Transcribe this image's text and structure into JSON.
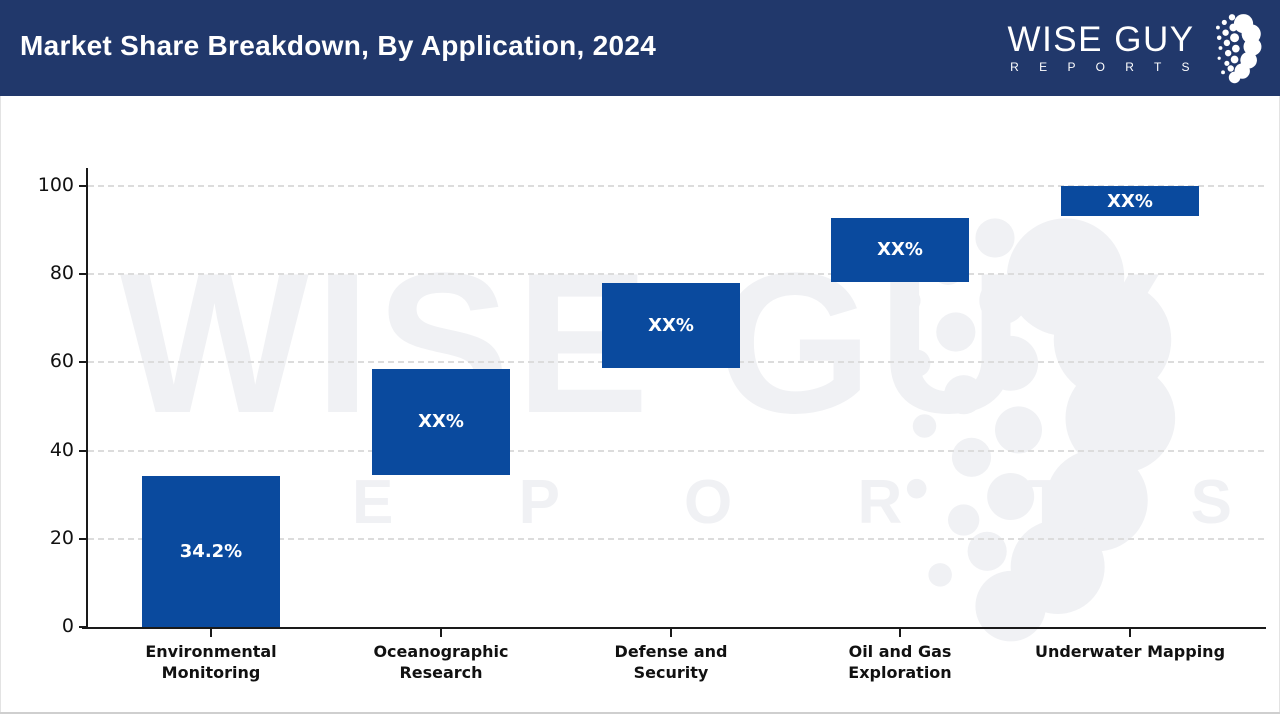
{
  "header": {
    "title": "Market Share Breakdown, By Application, 2024",
    "logo": {
      "line1": "WISE GUY",
      "line2": "R E P O R T S"
    }
  },
  "watermark": {
    "line1": "WISE GUY",
    "line2": "R E P O R T S"
  },
  "colors": {
    "header_bg": "#21386b",
    "bar": "#0a4a9e",
    "bar_label": "#ffffff",
    "grid": "#dcdcdc",
    "axis": "#1a1a1a",
    "watermark": "#f0f1f4"
  },
  "chart_data": {
    "type": "bar",
    "variant": "floating_range_waterfall",
    "title": "Market Share Breakdown, By Application, 2024",
    "categories": [
      "Environmental Monitoring",
      "Oceanographic Research",
      "Defense and Security",
      "Oil and Gas Exploration",
      "Underwater Mapping"
    ],
    "category_label_lines": [
      [
        "Environmental",
        "Monitoring"
      ],
      [
        "Oceanographic",
        "Research"
      ],
      [
        "Defense and",
        "Security"
      ],
      [
        "Oil and Gas",
        "Exploration"
      ],
      [
        "Underwater Mapping"
      ]
    ],
    "bars": [
      {
        "category": "Environmental Monitoring",
        "start": 0,
        "end": 34.2,
        "label": "34.2%"
      },
      {
        "category": "Oceanographic Research",
        "start": 34.4,
        "end": 58.6,
        "label": "XX%"
      },
      {
        "category": "Defense and Security",
        "start": 58.8,
        "end": 78.0,
        "label": "XX%"
      },
      {
        "category": "Oil and Gas Exploration",
        "start": 78.3,
        "end": 92.8,
        "label": "XX%"
      },
      {
        "category": "Underwater Mapping",
        "start": 93.1,
        "end": 100.0,
        "label": "XX%"
      }
    ],
    "yticks": [
      0,
      20,
      40,
      60,
      80,
      100
    ],
    "ylim": [
      0,
      104
    ],
    "xlabel": "",
    "ylabel": "",
    "grid": {
      "horizontal": true,
      "style": "dashed",
      "color": "#dcdcdc"
    },
    "bar_color": "#0a4a9e",
    "bar_label_color": "#ffffff",
    "legend": null
  }
}
